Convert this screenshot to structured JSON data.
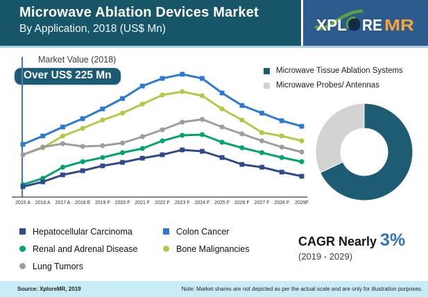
{
  "header": {
    "title": "Microwave Ablation Devices Market",
    "subtitle": "By Application, 2018 (US$ Mn)",
    "logo": {
      "part1": "XPL",
      "part2": "RE",
      "part3": "MR",
      "accent_color": "#f2a53a",
      "swoosh_color": "#5aa23c"
    }
  },
  "chart": {
    "market_value_label": "Market Value (2018)",
    "market_value_badge": "Over US$ 225 Mn",
    "badge_bg": "#1d5a74"
  },
  "cagr": {
    "prefix": "CAGR Nearly",
    "value": "3%",
    "range": "(2019 - 2029)",
    "value_color": "#2f74b8"
  },
  "footer": {
    "source": "Source: XploreMR, 2019",
    "note": "Note: Market shares are not depicted as per the actual scale and are only for illustration purposes."
  },
  "chart_data": [
    {
      "type": "line",
      "title": "Microwave Ablation Devices Market By Application, 2018 (US$ Mn)",
      "subtitle": "Market Value (2018): Over US$ 225 Mn",
      "categories": [
        "2015 A",
        "2016 A",
        "2017 A",
        "2018 E",
        "2019 F",
        "2020 F",
        "2021 F",
        "2022 F",
        "2023 F",
        "2024 F",
        "2025 F",
        "2026 F",
        "2027 F",
        "2028 F",
        "2029F"
      ],
      "series": [
        {
          "name": "Hepatocellular Carcinoma",
          "color": "#30498c",
          "marker": "square",
          "values": [
            15,
            22,
            32,
            38,
            45,
            50,
            56,
            61,
            68,
            66,
            57,
            47,
            43,
            36,
            30
          ]
        },
        {
          "name": "Colon Cancer",
          "color": "#2c79d4",
          "marker": "square",
          "values": [
            76,
            88,
            101,
            113,
            127,
            142,
            160,
            171,
            177,
            171,
            150,
            132,
            121,
            110,
            102
          ]
        },
        {
          "name": "Renal and Adrenal Disease",
          "color": "#00a56d",
          "marker": "circle",
          "values": [
            18,
            27,
            43,
            51,
            57,
            64,
            70,
            81,
            89,
            90,
            79,
            71,
            64,
            57,
            51
          ]
        },
        {
          "name": "Bone Malignancies",
          "color": "#b1c944",
          "marker": "circle",
          "values": [
            61,
            71,
            88,
            99,
            111,
            121,
            134,
            147,
            152,
            146,
            127,
            111,
            93,
            88,
            81
          ]
        },
        {
          "name": "Lung Tumors",
          "color": "#9d9d9d",
          "marker": "circle",
          "values": [
            61,
            72,
            77,
            73,
            74,
            78,
            87,
            97,
            108,
            112,
            101,
            91,
            81,
            72,
            65
          ]
        }
      ],
      "xlabel": "",
      "ylabel": "",
      "ylim": [
        0,
        210
      ],
      "grid": false,
      "legend_position": "bottom",
      "value_units_note": "y-axis unlabeled in source; values are illustrative relative units (chart explicitly not to scale)"
    },
    {
      "type": "pie",
      "donut": true,
      "labels": [
        "Microwave Tissue Ablation Systems",
        "Microwave Probes/ Antennas"
      ],
      "values": [
        68,
        32
      ],
      "colors": [
        "#1d5c72",
        "#d3d3d3"
      ],
      "legend_position": "top-left of donut",
      "value_units_note": "shares illustrative only, estimated from arc angles"
    }
  ]
}
